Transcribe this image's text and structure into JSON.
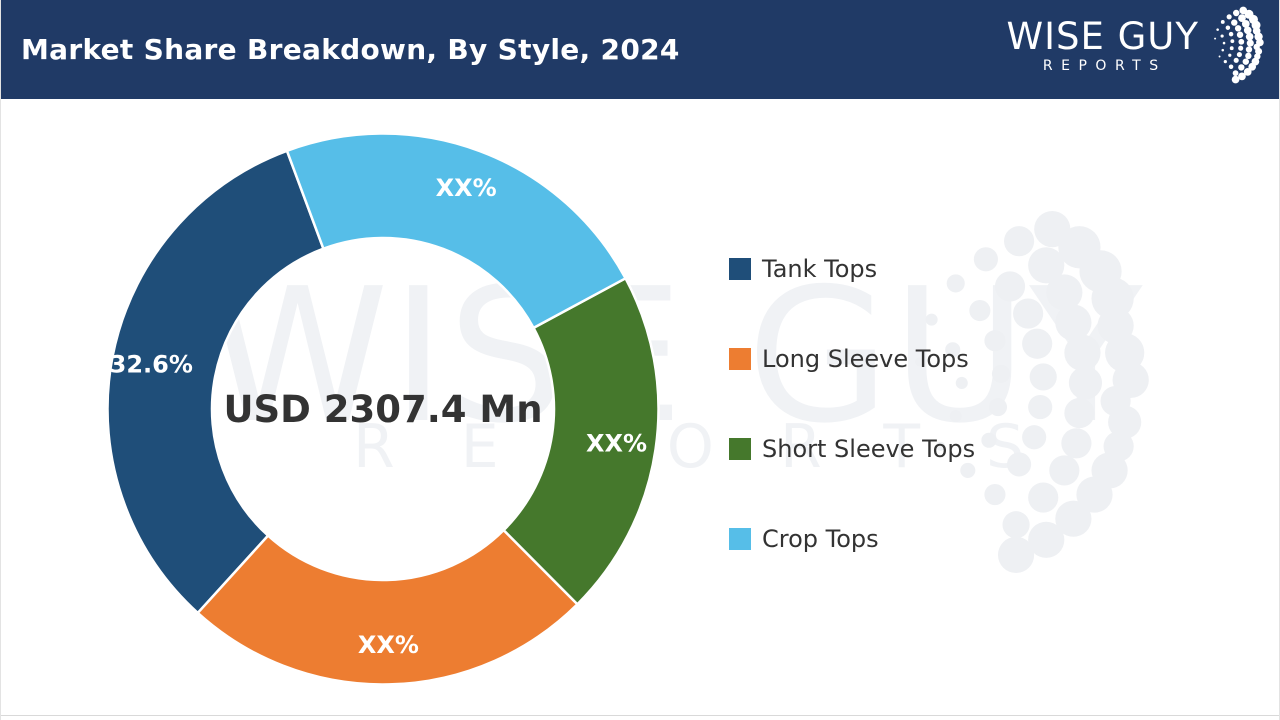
{
  "header": {
    "title": "Market Share Breakdown, By Style, 2024",
    "logo": {
      "name": "WISE GUY",
      "sub": "REPORTS"
    }
  },
  "watermark": {
    "line1": "WISE GUY",
    "line2": "REPORTS"
  },
  "chart_data": {
    "type": "pie",
    "subtype": "donut",
    "title": "Market Share Breakdown, By Style, 2024",
    "center_label": "USD 2307.4 Mn",
    "start_angle_deg": 110.4,
    "direction": "counterclockwise",
    "inner_radius_ratio": 0.62,
    "legend_position": "right",
    "segments": [
      {
        "name": "Tank Tops",
        "value_pct": 32.6,
        "label": "32.6%",
        "color": "#1f4e79"
      },
      {
        "name": "Long Sleeve Tops",
        "value_pct": 24.2,
        "label": "XX%",
        "color": "#ed7d31"
      },
      {
        "name": "Short Sleeve Tops",
        "value_pct": 20.4,
        "label": "XX%",
        "color": "#45782c"
      },
      {
        "name": "Crop Tops",
        "value_pct": 22.8,
        "label": "XX%",
        "color": "#56bee8"
      }
    ]
  }
}
